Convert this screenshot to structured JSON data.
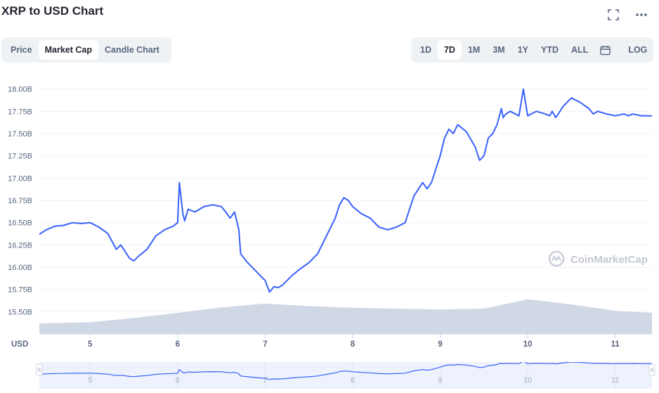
{
  "title": "XRP to USD Chart",
  "icons": {
    "fullscreen": "fullscreen-icon",
    "more": "more-icon",
    "calendar": "calendar-icon",
    "watermark": "coinmarketcap-logo-icon"
  },
  "tabs": [
    {
      "label": "Price",
      "active": false
    },
    {
      "label": "Market Cap",
      "active": true
    },
    {
      "label": "Candle Chart",
      "active": false
    }
  ],
  "ranges": [
    {
      "label": "1D",
      "active": false
    },
    {
      "label": "7D",
      "active": true
    },
    {
      "label": "1M",
      "active": false
    },
    {
      "label": "3M",
      "active": false
    },
    {
      "label": "1Y",
      "active": false
    },
    {
      "label": "YTD",
      "active": false
    },
    {
      "label": "ALL",
      "active": false
    }
  ],
  "log_label": "LOG",
  "watermark": "CoinMarketCap",
  "colors": {
    "line": "#3861fb",
    "volume": "#cfd6e4",
    "grid": "#eff2f5",
    "navigator_bg": "#eef2fd",
    "watermark": "#c4c9d2"
  },
  "chart_data": {
    "type": "line",
    "title": "XRP to USD Chart",
    "currency_label": "USD",
    "ylim_billions": [
      15.25,
      18.25
    ],
    "y_ticks": [
      "15.50B",
      "15.75B",
      "16.00B",
      "16.25B",
      "16.50B",
      "16.75B",
      "17.00B",
      "17.25B",
      "17.50B",
      "17.75B",
      "18.00B"
    ],
    "y_tick_values": [
      15.5,
      15.75,
      16.0,
      16.25,
      16.5,
      16.75,
      17.0,
      17.25,
      17.5,
      17.75,
      18.0
    ],
    "x_ticks": [
      "5",
      "6",
      "7",
      "8",
      "9",
      "10",
      "11"
    ],
    "x_tick_values": [
      5,
      6,
      7,
      8,
      9,
      10,
      11
    ],
    "xlim": [
      4.42,
      11.42
    ],
    "series": [
      {
        "x": [
          4.42,
          4.5,
          4.6,
          4.7,
          4.8,
          4.9,
          5.0,
          5.1,
          5.2,
          5.3,
          5.35,
          5.45,
          5.5,
          5.55,
          5.65,
          5.75,
          5.85,
          5.95,
          6.0,
          6.02,
          6.06,
          6.08,
          6.12,
          6.2,
          6.3,
          6.4,
          6.5,
          6.55,
          6.6,
          6.65,
          6.7,
          6.72,
          6.8,
          6.9,
          7.0,
          7.05,
          7.1,
          7.15,
          7.2,
          7.3,
          7.4,
          7.5,
          7.6,
          7.7,
          7.8,
          7.85,
          7.9,
          7.95,
          8.0,
          8.1,
          8.2,
          8.3,
          8.4,
          8.5,
          8.6,
          8.7,
          8.8,
          8.85,
          8.9,
          9.0,
          9.05,
          9.1,
          9.15,
          9.2,
          9.3,
          9.4,
          9.45,
          9.5,
          9.55,
          9.6,
          9.65,
          9.7,
          9.72,
          9.75,
          9.8,
          9.9,
          9.95,
          10.0,
          10.1,
          10.2,
          10.25,
          10.28,
          10.32,
          10.35,
          10.4,
          10.5,
          10.6,
          10.7,
          10.75,
          10.8,
          10.9,
          11.0,
          11.1,
          11.15,
          11.2,
          11.3,
          11.35,
          11.42
        ],
        "y": [
          16.37,
          16.42,
          16.46,
          16.47,
          16.5,
          16.49,
          16.5,
          16.45,
          16.38,
          16.2,
          16.25,
          16.1,
          16.07,
          16.12,
          16.2,
          16.35,
          16.42,
          16.46,
          16.5,
          16.95,
          16.6,
          16.52,
          16.65,
          16.62,
          16.68,
          16.7,
          16.68,
          16.62,
          16.55,
          16.62,
          16.42,
          16.15,
          16.05,
          15.95,
          15.85,
          15.72,
          15.78,
          15.77,
          15.8,
          15.9,
          15.98,
          16.05,
          16.15,
          16.35,
          16.55,
          16.7,
          16.78,
          16.75,
          16.68,
          16.6,
          16.55,
          16.45,
          16.42,
          16.45,
          16.5,
          16.8,
          16.95,
          16.88,
          16.95,
          17.25,
          17.45,
          17.55,
          17.5,
          17.6,
          17.52,
          17.35,
          17.2,
          17.25,
          17.45,
          17.5,
          17.6,
          17.78,
          17.68,
          17.72,
          17.75,
          17.7,
          18.0,
          17.7,
          17.75,
          17.72,
          17.7,
          17.75,
          17.68,
          17.72,
          17.8,
          17.9,
          17.85,
          17.78,
          17.72,
          17.75,
          17.72,
          17.7,
          17.72,
          17.7,
          17.72,
          17.7,
          17.7,
          17.7
        ]
      }
    ],
    "volume_profile": {
      "x": [
        4.42,
        5.0,
        5.5,
        6.0,
        6.5,
        7.0,
        7.5,
        8.0,
        8.5,
        9.0,
        9.5,
        10.0,
        10.5,
        11.0,
        11.42
      ],
      "relative": [
        0.25,
        0.28,
        0.38,
        0.5,
        0.63,
        0.72,
        0.66,
        0.62,
        0.6,
        0.58,
        0.6,
        0.82,
        0.7,
        0.55,
        0.5
      ]
    }
  }
}
